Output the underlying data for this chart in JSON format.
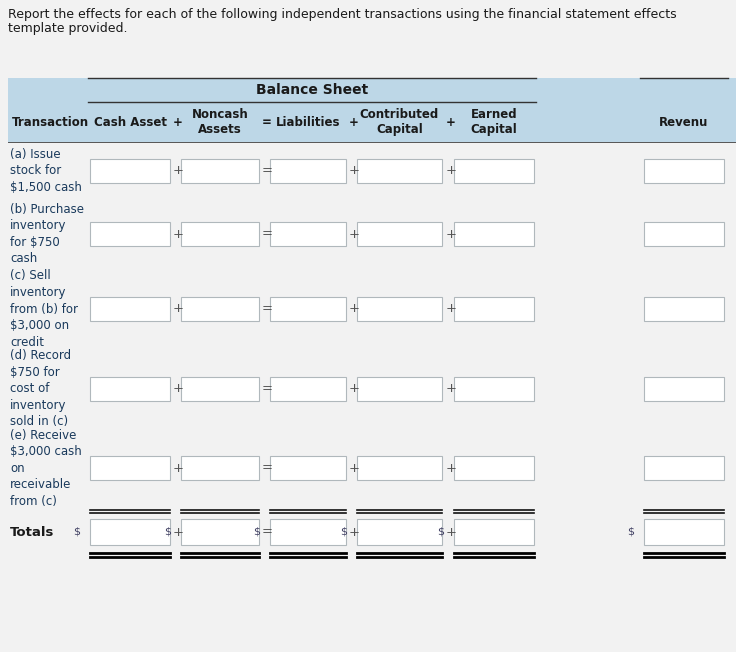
{
  "title_line1": "Report the effects for each of the following independent transactions using the financial statement effects",
  "title_line2": "template provided.",
  "balance_sheet_label": "Balance Sheet",
  "col_headers": [
    "Transaction",
    "Cash Asset",
    "+",
    "Noncash\nAssets",
    "=",
    "Liabilities",
    "+",
    "Contributed\nCapital",
    "+",
    "Earned\nCapital",
    "Revenu"
  ],
  "transactions": [
    "(a) Issue\nstock for\n$1,500 cash",
    "(b) Purchase\ninventory\nfor $750\ncash",
    "(c) Sell\ninventory\nfrom (b) for\n$3,000 on\ncredit",
    "(d) Record\n$750 for\ncost of\ninventory\nsold in (c)",
    "(e) Receive\n$3,000 cash\non\nreceivable\nfrom (c)"
  ],
  "totals_label": "Totals",
  "header_bg": "#bdd7e7",
  "white": "#ffffff",
  "box_border": "#b0b8bc",
  "text_color": "#1a1a1a",
  "title_color": "#1a1a1a",
  "fig_bg": "#f0f0f0",
  "title_fontsize": 9.0,
  "header_fontsize": 8.5,
  "body_fontsize": 8.5,
  "totals_fontsize": 9.5
}
